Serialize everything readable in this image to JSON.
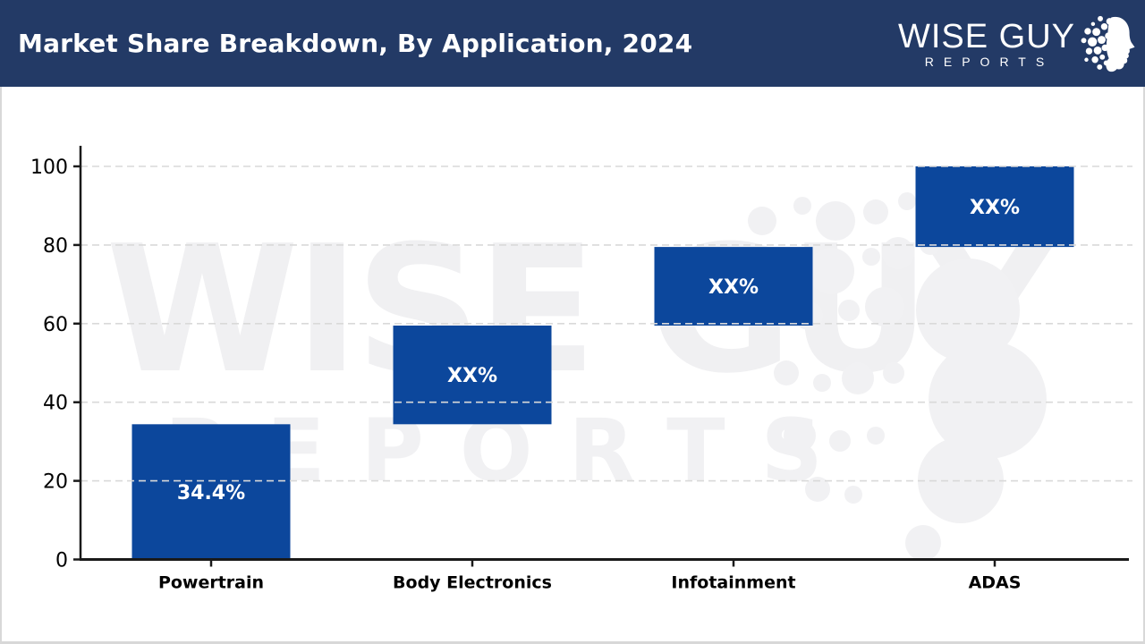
{
  "header": {
    "title": "Market Share Breakdown, By Application, 2024",
    "logo": {
      "line1": "WISE GUY",
      "line2": "REPORTS"
    }
  },
  "watermark": {
    "line1": "WISE GUY",
    "line2": "REPORTS"
  },
  "colors": {
    "header_bg": "#233a66",
    "bar": "#0c479c",
    "grid": "#d9d9d9",
    "axis": "#1a1a1a",
    "bar_label": "#ffffff",
    "watermark": "#f0f0f2"
  },
  "chart_data": {
    "type": "bar",
    "subtype": "floating-waterfall-segments",
    "title": "Market Share Breakdown, By Application, 2024",
    "categories": [
      "Powertrain",
      "Body Electronics",
      "Infotainment",
      "ADAS"
    ],
    "segments": [
      {
        "category": "Powertrain",
        "start": 0,
        "end": 34.4,
        "label": "34.4%"
      },
      {
        "category": "Body Electronics",
        "start": 34.4,
        "end": 59.5,
        "label": "XX%"
      },
      {
        "category": "Infotainment",
        "start": 59.5,
        "end": 79.5,
        "label": "XX%"
      },
      {
        "category": "ADAS",
        "start": 79.5,
        "end": 100,
        "label": "XX%"
      }
    ],
    "xlabel": "",
    "ylabel": "",
    "ylim": [
      0,
      100
    ],
    "yticks": [
      0,
      20,
      40,
      60,
      80,
      100
    ],
    "grid": "horizontal-dashed",
    "legend": "none",
    "bar_color": "#0c479c",
    "bar_label_color": "#ffffff"
  }
}
